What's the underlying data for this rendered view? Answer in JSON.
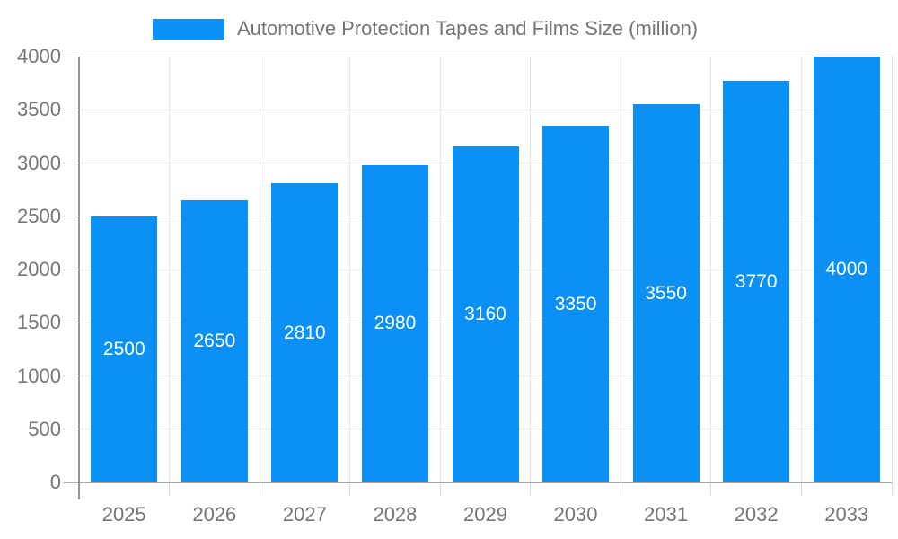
{
  "chart_data": {
    "type": "bar",
    "title": "Automotive Protection Tapes and Films Size (million)",
    "categories": [
      "2025",
      "2026",
      "2027",
      "2028",
      "2029",
      "2030",
      "2031",
      "2032",
      "2033"
    ],
    "values": [
      2500,
      2650,
      2810,
      2980,
      3160,
      3350,
      3550,
      3770,
      4000
    ],
    "xlabel": "",
    "ylabel": "",
    "ylim": [
      0,
      4000
    ],
    "yticks": [
      0,
      500,
      1000,
      1500,
      2000,
      2500,
      3000,
      3500,
      4000
    ],
    "grid": true,
    "legend_position": "top-center",
    "bar_label_placement": "inside-center",
    "colors": {
      "bar": "#0b90f5",
      "bar_label_text": "#ffffff",
      "axis_text": "#757575",
      "axis_line": "#a6a6a6",
      "gridline": "#e6e6e6",
      "tick_major": "#b3b3b3",
      "tick_minor": "#d9d9d9",
      "background": "#ffffff"
    }
  }
}
